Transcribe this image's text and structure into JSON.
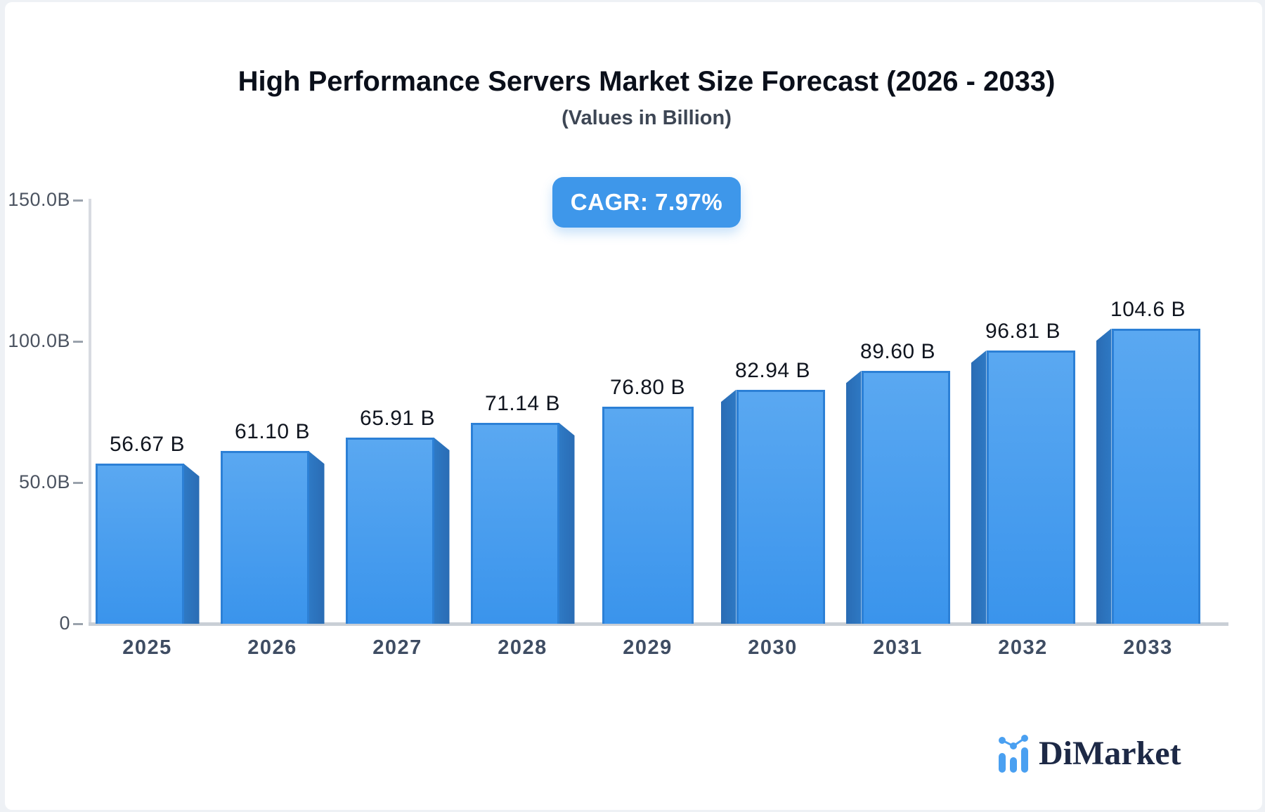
{
  "header": {
    "title": "High Performance Servers Market Size Forecast (2026 - 2033)",
    "subtitle": "(Values in Billion)",
    "cagr_badge": "CAGR: 7.97%"
  },
  "chart_data": {
    "type": "bar",
    "title": "High Performance Servers Market Size Forecast (2026 - 2033)",
    "subtitle": "(Values in Billion)",
    "xlabel": "",
    "ylabel": "",
    "unit": "Billion",
    "cagr": "7.97%",
    "categories": [
      "2025",
      "2026",
      "2027",
      "2028",
      "2029",
      "2030",
      "2031",
      "2032",
      "2033"
    ],
    "values": [
      56.67,
      61.1,
      65.91,
      71.14,
      76.8,
      82.94,
      89.6,
      96.81,
      104.6
    ],
    "value_labels": [
      "56.67 B",
      "61.10 B",
      "65.91 B",
      "71.14 B",
      "76.80 B",
      "82.94 B",
      "89.60 B",
      "96.81 B",
      "104.6 B"
    ],
    "ylim": [
      0,
      150
    ],
    "y_ticks": [
      {
        "value": 0,
        "label": "0"
      },
      {
        "value": 50,
        "label": "50.0B"
      },
      {
        "value": 100,
        "label": "100.0B"
      },
      {
        "value": 150,
        "label": "150.0B"
      }
    ],
    "grid": false,
    "legend": false,
    "bar_color": "#3f9bed",
    "bar_side_color": "#2d72ba",
    "style": "3d-perspective-bars"
  },
  "logo": {
    "text": "DiMarket",
    "icon": "bar-chart-logo-icon",
    "icon_color": "#4aa0f1",
    "text_color": "#1d2946"
  },
  "colors": {
    "badge_bg": "#3e97ea",
    "axis_line": "#d8dbe1",
    "baseline": "#c9cfd6",
    "background": "#ffffff"
  }
}
